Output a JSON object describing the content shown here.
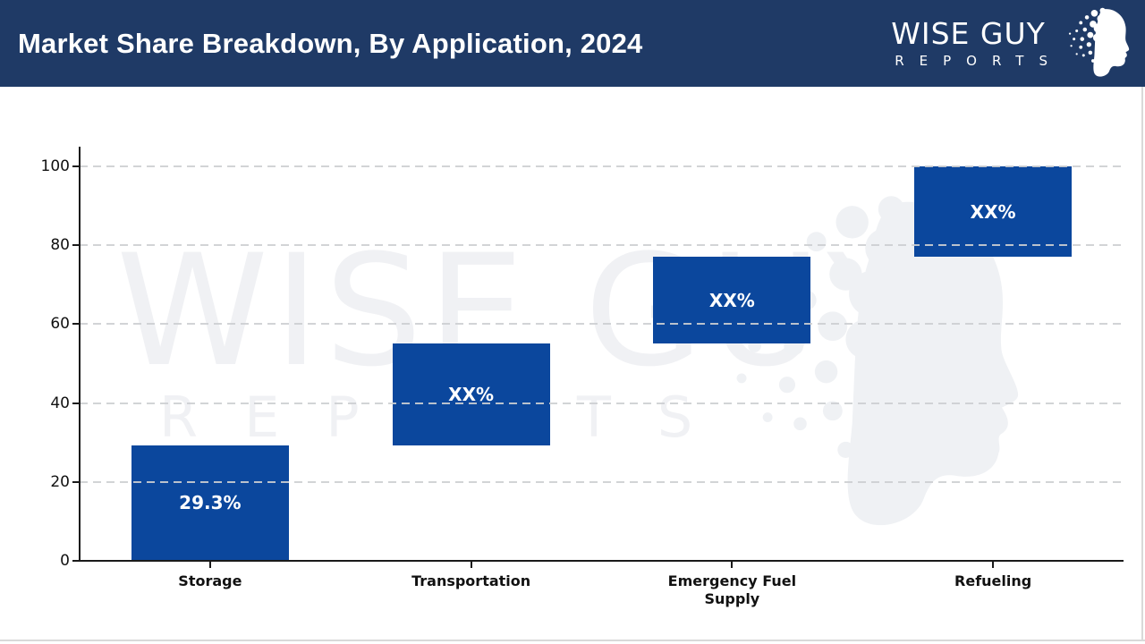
{
  "header": {
    "title": "Market Share Breakdown, By Application, 2024",
    "logo_line1": "WISE GUY",
    "logo_line2": "REPORTS"
  },
  "watermark": {
    "line1": "WISE GUY",
    "line2": "REPORTS"
  },
  "colors": {
    "header_bg": "#1f3a66",
    "bar_blue": "#0b479d",
    "bar_label": "#ffffff",
    "grid_gray": "#cdcfd2",
    "axis_black": "#1a1a1a",
    "watermark_gray": "#f0f1f4",
    "edge_gray": "#d9d9d9"
  },
  "chart_data": {
    "type": "bar",
    "variant": "waterfall",
    "title": "Market Share Breakdown, By Application, 2024",
    "categories": [
      "Storage",
      "Transportation",
      "Emergency Fuel Supply",
      "Refueling"
    ],
    "segments": [
      {
        "category": "Storage",
        "start": 0,
        "end": 29.3,
        "label": "29.3%"
      },
      {
        "category": "Transportation",
        "start": 29.3,
        "end": 55,
        "label": "XX%"
      },
      {
        "category": "Emergency Fuel Supply",
        "start": 55,
        "end": 77,
        "label": "XX%"
      },
      {
        "category": "Refueling",
        "start": 77,
        "end": 100,
        "label": "XX%"
      }
    ],
    "ylim": [
      0,
      100
    ],
    "yticks": [
      0,
      20,
      40,
      60,
      80,
      100
    ],
    "grid": "horizontal-dashed-over-bars",
    "legend": "none",
    "bar_color": "#0b479d",
    "label_color": "#ffffff"
  }
}
